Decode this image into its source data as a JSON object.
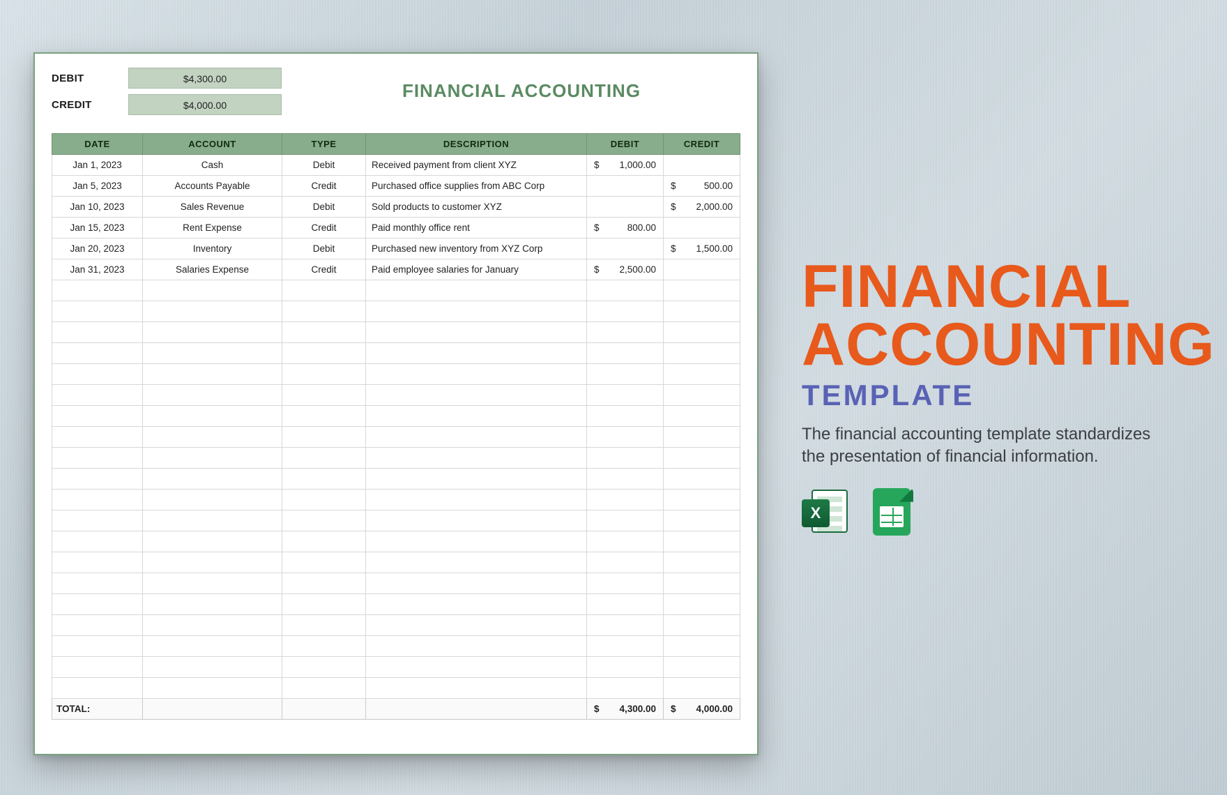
{
  "sheet": {
    "title": "FINANCIAL ACCOUNTING",
    "summary": {
      "debit_label": "DEBIT",
      "debit_value": "$4,300.00",
      "credit_label": "CREDIT",
      "credit_value": "$4,000.00"
    },
    "columns": {
      "date": "DATE",
      "account": "ACCOUNT",
      "type": "TYPE",
      "description": "DESCRIPTION",
      "debit": "DEBIT",
      "credit": "CREDIT"
    },
    "rows": [
      {
        "date": "Jan 1, 2023",
        "account": "Cash",
        "type": "Debit",
        "description": "Received payment from client XYZ",
        "debit": "1,000.00",
        "credit": ""
      },
      {
        "date": "Jan 5, 2023",
        "account": "Accounts Payable",
        "type": "Credit",
        "description": "Purchased office supplies from ABC Corp",
        "debit": "",
        "credit": "500.00"
      },
      {
        "date": "Jan 10, 2023",
        "account": "Sales Revenue",
        "type": "Debit",
        "description": "Sold products to customer XYZ",
        "debit": "",
        "credit": "2,000.00"
      },
      {
        "date": "Jan 15, 2023",
        "account": "Rent Expense",
        "type": "Credit",
        "description": "Paid monthly office rent",
        "debit": "800.00",
        "credit": ""
      },
      {
        "date": "Jan 20, 2023",
        "account": "Inventory",
        "type": "Debit",
        "description": "Purchased new inventory from XYZ Corp",
        "debit": "",
        "credit": "1,500.00"
      },
      {
        "date": "Jan 31, 2023",
        "account": "Salaries Expense",
        "type": "Credit",
        "description": "Paid employee salaries for January",
        "debit": "2,500.00",
        "credit": ""
      }
    ],
    "empty_rows": 20,
    "footer": {
      "label": "TOTAL:",
      "debit": "4,300.00",
      "credit": "4,000.00"
    },
    "colors": {
      "header_bg": "#88ad8c",
      "summary_bg": "#c3d3c2",
      "title_color": "#5b8a62",
      "border": "#7aa27e"
    }
  },
  "promo": {
    "headline1": "FINANCIAL",
    "headline2": "ACCOUNTING",
    "subhead": "TEMPLATE",
    "body": "The financial accounting template standardizes the presentation of financial information.",
    "icons": {
      "excel": "X",
      "sheets": "sheets-icon"
    },
    "colors": {
      "headline": "#e8591c",
      "subhead": "#5a62b5",
      "body": "#3b3f44"
    }
  }
}
